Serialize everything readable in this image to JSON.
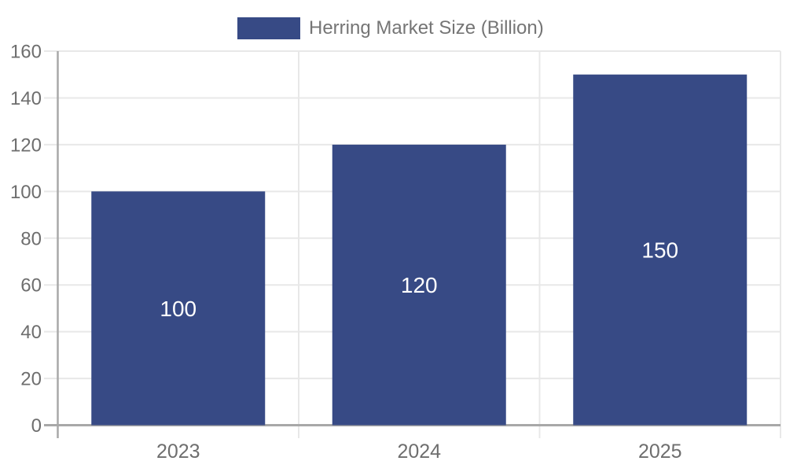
{
  "chart_data": {
    "type": "bar",
    "title": "",
    "legend": {
      "label": "Herring Market Size (Billion)",
      "position": "top"
    },
    "categories": [
      "2023",
      "2024",
      "2025"
    ],
    "series": [
      {
        "name": "Herring Market Size (Billion)",
        "values": [
          100,
          120,
          150
        ]
      }
    ],
    "bar_value_labels": [
      "100",
      "120",
      "150"
    ],
    "xlabel": "",
    "ylabel": "",
    "ylim": [
      0,
      160
    ],
    "yticks": [
      0,
      20,
      40,
      60,
      80,
      100,
      120,
      140,
      160
    ],
    "grid": "on",
    "colors": {
      "bar_fill": "#374A85",
      "gridline": "#e8e8e8",
      "axis_line": "#a8a8a8",
      "tick_label": "#6e6e6e",
      "legend_label": "#757575",
      "bar_value_label": "#ffffff"
    }
  }
}
